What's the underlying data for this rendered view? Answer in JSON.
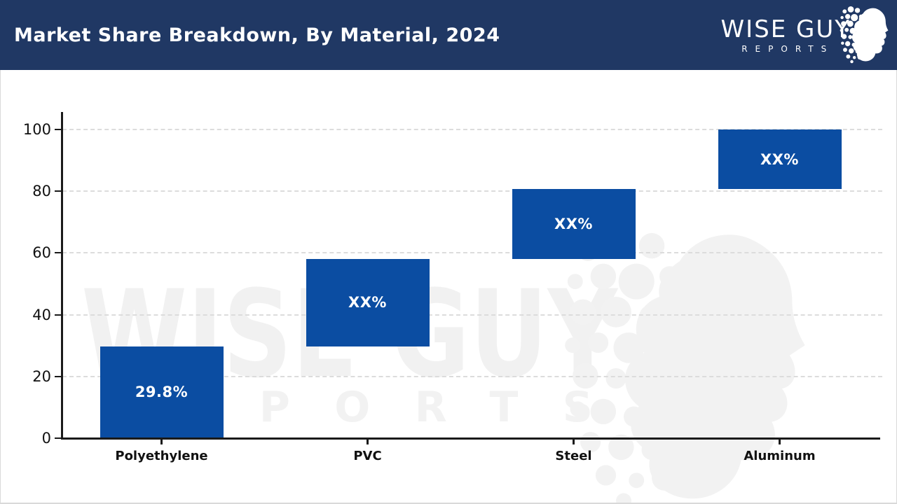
{
  "header": {
    "title": "Market Share Breakdown, By Material, 2024",
    "bg_color": "#203864",
    "logo": {
      "line1": "WISE GUY",
      "line2": "REPORTS"
    }
  },
  "watermark": {
    "line1": "WISE GUY",
    "line2": "REPORTS"
  },
  "chart_data": {
    "type": "bar",
    "subtype": "waterfall-stacked-segments",
    "title": "Market Share Breakdown, By Material, 2024",
    "categories": [
      "Polyethylene",
      "PVC",
      "Steel",
      "Aluminum"
    ],
    "segments": [
      {
        "category": "Polyethylene",
        "start": 0,
        "end": 29.8,
        "label": "29.8%"
      },
      {
        "category": "PVC",
        "start": 29.8,
        "end": 58.1,
        "label": "XX%"
      },
      {
        "category": "Steel",
        "start": 58.1,
        "end": 80.7,
        "label": "XX%"
      },
      {
        "category": "Aluminum",
        "start": 80.7,
        "end": 100,
        "label": "XX%"
      }
    ],
    "yticks": [
      0,
      20,
      40,
      60,
      80,
      100
    ],
    "ylim": [
      0,
      100
    ],
    "xlabel": "",
    "ylabel": "",
    "bar_color": "#0b4da2",
    "grid": "horizontal-dashed",
    "legend": "none"
  }
}
